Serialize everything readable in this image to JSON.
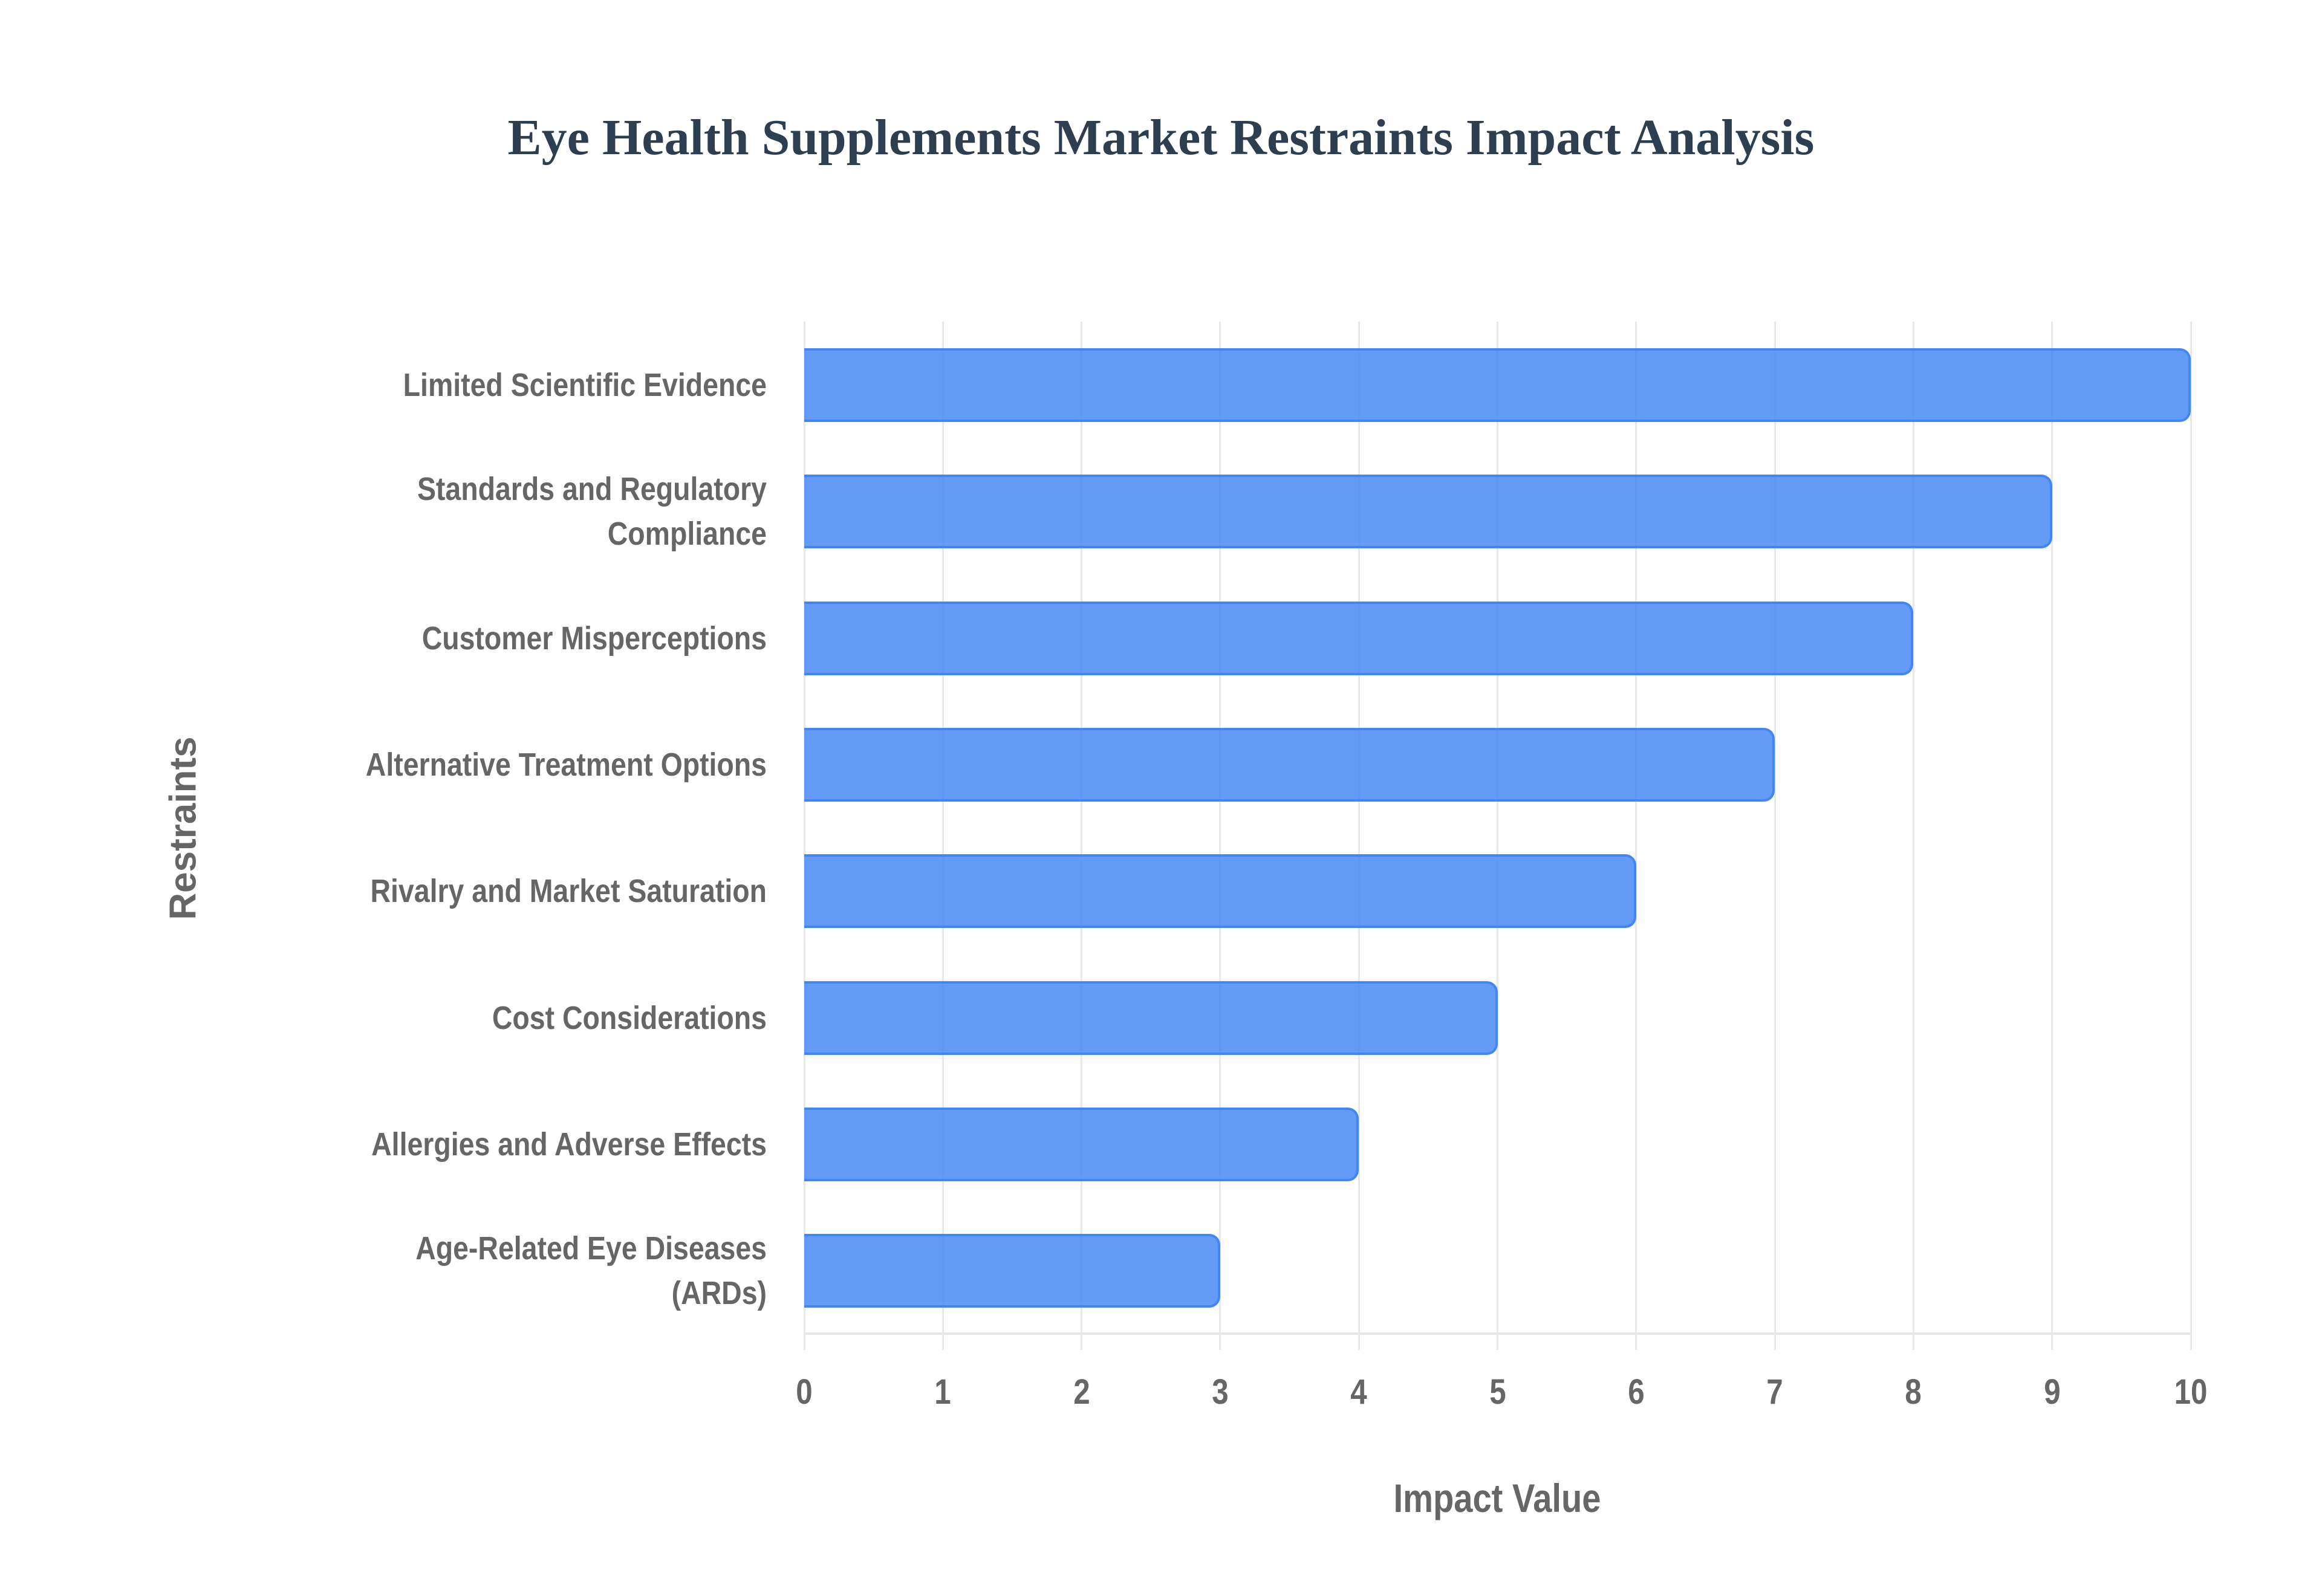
{
  "chart": {
    "title": "Eye Health Supplements Market Restraints Impact Analysis",
    "x_axis_title": "Impact Value",
    "y_axis_title": "Restraints",
    "x_ticks": [
      "0",
      "1",
      "2",
      "3",
      "4",
      "5",
      "6",
      "7",
      "8",
      "9",
      "10"
    ],
    "categories": [
      {
        "lines": [
          "Limited Scientific Evidence"
        ],
        "value": 10
      },
      {
        "lines": [
          "Standards and Regulatory",
          "Compliance"
        ],
        "value": 9
      },
      {
        "lines": [
          "Customer Misperceptions"
        ],
        "value": 8
      },
      {
        "lines": [
          "Alternative Treatment Options"
        ],
        "value": 7
      },
      {
        "lines": [
          "Rivalry and Market Saturation"
        ],
        "value": 6
      },
      {
        "lines": [
          "Cost Considerations"
        ],
        "value": 5
      },
      {
        "lines": [
          "Allergies and Adverse Effects"
        ],
        "value": 4
      },
      {
        "lines": [
          "Age-Related Eye Diseases",
          "(ARDs)"
        ],
        "value": 3
      }
    ],
    "colors": {
      "bar_fill": "#6199f5",
      "bar_border": "#4285f4",
      "title": "#2c3e50",
      "labels": "#666666",
      "grid": "#e8e8e8"
    }
  },
  "chart_data": {
    "type": "bar",
    "orientation": "horizontal",
    "title": "Eye Health Supplements Market Restraints Impact Analysis",
    "xlabel": "Impact Value",
    "ylabel": "Restraints",
    "categories": [
      "Limited Scientific Evidence",
      "Standards and Regulatory Compliance",
      "Customer Misperceptions",
      "Alternative Treatment Options",
      "Rivalry and Market Saturation",
      "Cost Considerations",
      "Allergies and Adverse Effects",
      "Age-Related Eye Diseases (ARDs)"
    ],
    "values": [
      10,
      9,
      8,
      7,
      6,
      5,
      4,
      3
    ],
    "xlim": [
      0,
      10
    ],
    "x_ticks": [
      0,
      1,
      2,
      3,
      4,
      5,
      6,
      7,
      8,
      9,
      10
    ],
    "grid": true,
    "legend": null
  }
}
